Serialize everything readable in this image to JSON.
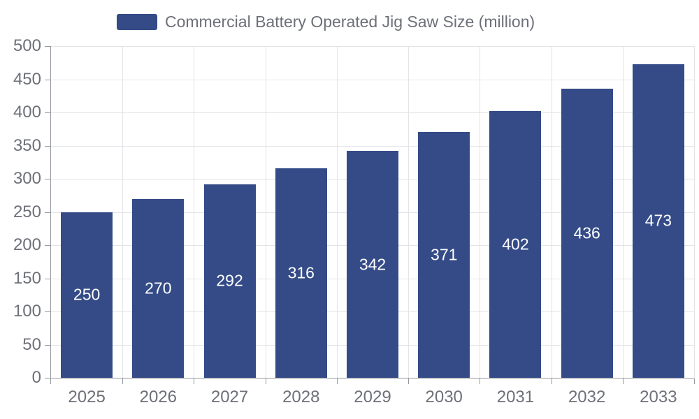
{
  "chart_data": {
    "type": "bar",
    "title": "Commercial Battery Operated Jig Saw Size (million)",
    "legend": [
      "Commercial Battery Operated Jig Saw Size (million)"
    ],
    "legend_position": "top",
    "categories": [
      "2025",
      "2026",
      "2027",
      "2028",
      "2029",
      "2030",
      "2031",
      "2032",
      "2033"
    ],
    "values": [
      250,
      270,
      292,
      316,
      342,
      371,
      402,
      436,
      473
    ],
    "bar_labels": [
      "250",
      "270",
      "292",
      "316",
      "342",
      "371",
      "402",
      "436",
      "473"
    ],
    "bar_label_position": "inside-middle",
    "xlabel": "",
    "ylabel": "",
    "ylim": [
      0,
      500
    ],
    "ytick_step": 50,
    "yticks": [
      0,
      50,
      100,
      150,
      200,
      250,
      300,
      350,
      400,
      450,
      500
    ],
    "grid": true,
    "colors": {
      "bar": "#344B87",
      "bar_label": "#FFFFFF",
      "grid_line": "#E3E4E8",
      "axis_line": "#969A9F",
      "tick_text": "#6E7079",
      "legend_text": "#6E7079",
      "background": "#FFFFFF"
    }
  }
}
